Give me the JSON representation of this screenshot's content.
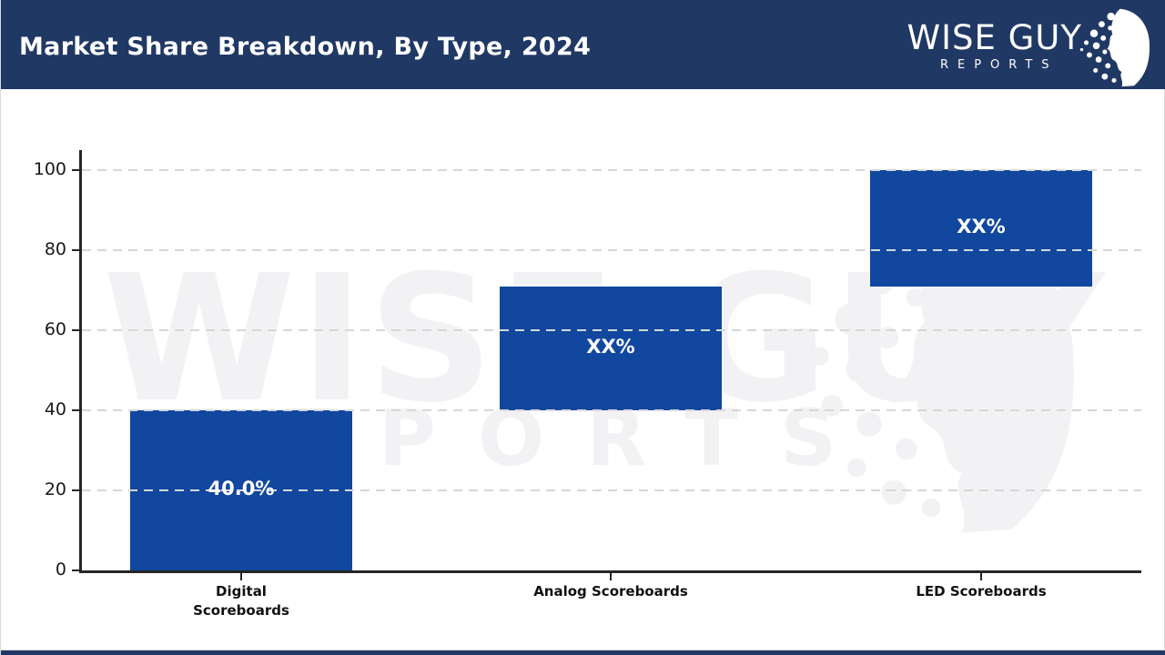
{
  "header": {
    "title": "Market Share Breakdown, By Type, 2024",
    "bg_color": "#203864",
    "brand": {
      "line1": "WISE GUY",
      "line2": "REPORTS"
    }
  },
  "watermark": {
    "line1": "WISE GUY",
    "line2": "REPORTS"
  },
  "footer": {
    "bar_color": "#203864"
  },
  "chart_data": {
    "type": "bar",
    "subtype": "floating-waterfall",
    "title": "Market Share Breakdown, By Type, 2024",
    "categories": [
      "Digital\nScoreboards",
      "Analog Scoreboards",
      "LED Scoreboards"
    ],
    "series": [
      {
        "name": "Market Share",
        "segments": [
          {
            "category": "Digital Scoreboards",
            "start": 0,
            "end": 40,
            "label": "40.0%"
          },
          {
            "category": "Analog Scoreboards",
            "start": 40,
            "end": 71,
            "label": "XX%"
          },
          {
            "category": "LED Scoreboards",
            "start": 71,
            "end": 100,
            "label": "XX%"
          }
        ]
      }
    ],
    "xlabel": "",
    "ylabel": "",
    "ylim": [
      0,
      100
    ],
    "yticks": [
      0,
      20,
      40,
      60,
      80,
      100
    ],
    "grid": "horizontal-dashed-over-bars",
    "legend": "none",
    "bar_color": "#11479e",
    "bar_label_color": "#ffffff",
    "axis_color": "#262626",
    "gridline_color": "#d7d7d7"
  }
}
